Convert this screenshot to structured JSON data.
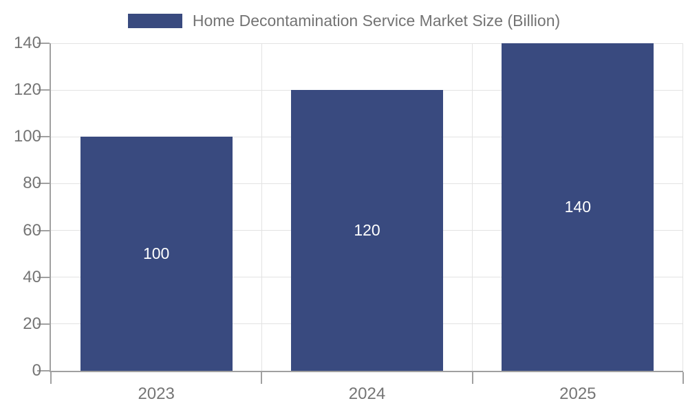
{
  "chart": {
    "background": "#ffffff",
    "bar_color": "#394a7f",
    "grid_color": "#e2e2e2",
    "axis_color": "#a0a0a0",
    "tick_text_color": "#757575",
    "legend_text_color": "#737373",
    "bar_label_color": "#ffffff"
  },
  "chart_data": {
    "type": "bar",
    "title": "Home Decontamination Service Market Size (Billion)",
    "categories": [
      "2023",
      "2024",
      "2025"
    ],
    "values": [
      100,
      120,
      140
    ],
    "bar_labels": [
      "100",
      "120",
      "140"
    ],
    "xlabel": "",
    "ylabel": "",
    "ylim": [
      0,
      140
    ],
    "yticks": [
      0,
      20,
      40,
      60,
      80,
      100,
      120,
      140
    ],
    "grid": true,
    "legend_position": "top"
  }
}
